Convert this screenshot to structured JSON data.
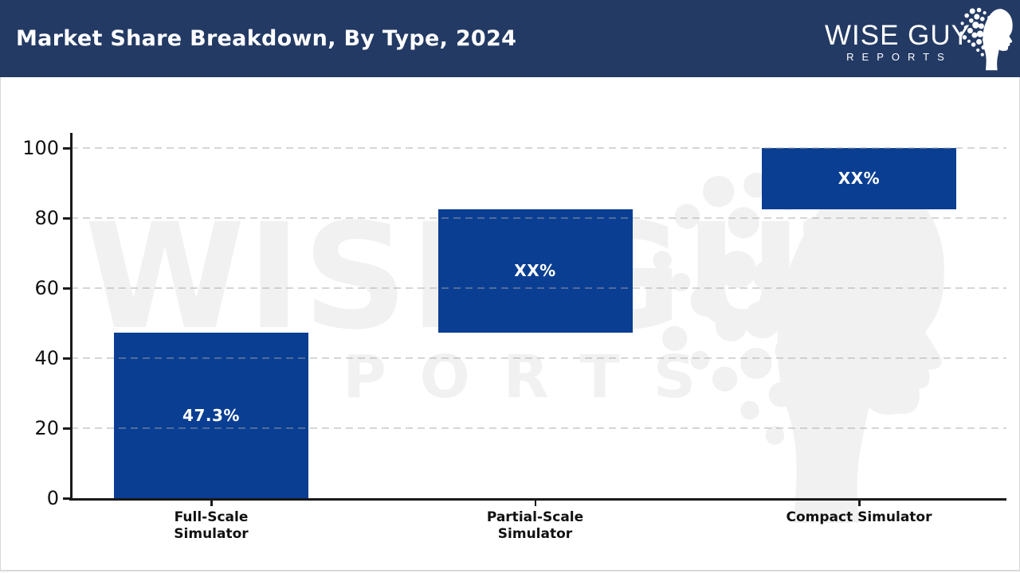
{
  "header": {
    "title": "Market Share Breakdown, By Type, 2024",
    "logo": {
      "line1": "WISE GUY",
      "line2": "REPORTS",
      "face_icon": "dotted-face-profile-icon"
    }
  },
  "watermark": {
    "line1": "WISE GUY",
    "line2": "REPORTS",
    "face_icon": "dotted-face-profile-icon"
  },
  "chart_data": {
    "type": "bar",
    "subtype": "floating-waterfall",
    "title": "Market Share Breakdown, By Type, 2024",
    "categories": [
      "Full-Scale Simulator",
      "Partial-Scale Simulator",
      "Compact Simulator"
    ],
    "tick_label_lines": [
      [
        "Full-Scale",
        "Simulator"
      ],
      [
        "Partial-Scale",
        "Simulator"
      ],
      [
        "Compact Simulator"
      ]
    ],
    "segments": [
      {
        "category": "Full-Scale Simulator",
        "start": 0,
        "end": 47.3,
        "label": "47.3%"
      },
      {
        "category": "Partial-Scale Simulator",
        "start": 47.3,
        "end": 82.6,
        "label": "XX%"
      },
      {
        "category": "Compact Simulator",
        "start": 82.6,
        "end": 100,
        "label": "XX%"
      }
    ],
    "xlabel": "",
    "ylabel": "",
    "yticks": [
      0,
      20,
      40,
      60,
      80,
      100
    ],
    "ylim": [
      0,
      104
    ],
    "grid": "dashed-horizontal",
    "legend": "none",
    "bar_color": "#0a3e92",
    "header_color": "#233a64",
    "label_color": "#ffffff"
  }
}
